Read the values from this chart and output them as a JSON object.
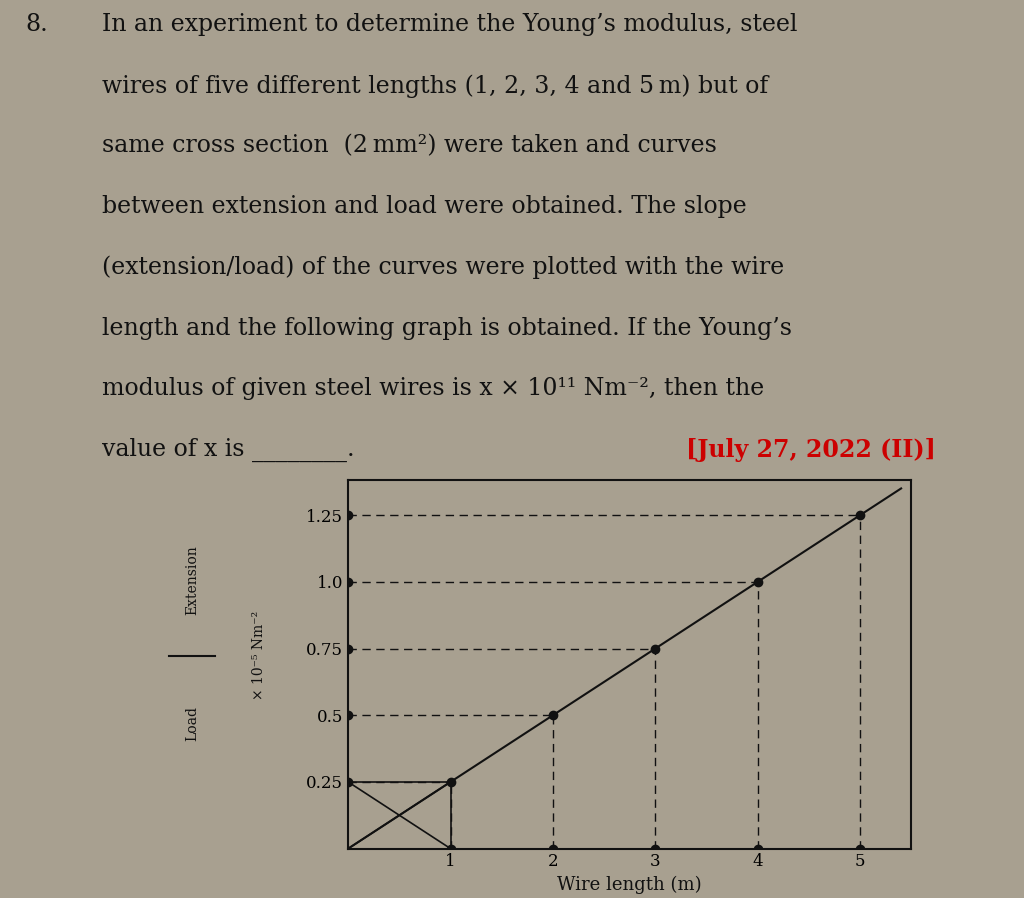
{
  "question_number": "8.",
  "line_texts": [
    "In an experiment to determine the Young’s modulus, steel",
    "wires of five different lengths (1, 2, 3, 4 and 5 m) but of",
    "same cross section  (2 mm²) were taken and curves",
    "between extension and load were obtained. The slope",
    "(extension/load) of the curves were plotted with the wire",
    "length and the following graph is obtained. If the Young’s",
    "modulus of given steel wires is x × 10¹¹ Nm⁻², then the",
    "value of x is ________."
  ],
  "july_ref": "[July 27, 2022 (II)]",
  "x_data": [
    1,
    2,
    3,
    4,
    5
  ],
  "y_data": [
    0.25,
    0.5,
    0.75,
    1.0,
    1.25
  ],
  "x_label": "Wire length (m)",
  "y_ticks": [
    0.25,
    0.5,
    0.75,
    1.0,
    1.25
  ],
  "x_ticks": [
    1,
    2,
    3,
    4,
    5
  ],
  "background_color": "#a8a090",
  "text_color": "#111111",
  "line_color": "#111111",
  "dot_color": "#111111",
  "july_color": "#cc0000",
  "font_size_text": 17,
  "font_size_graph": 12
}
